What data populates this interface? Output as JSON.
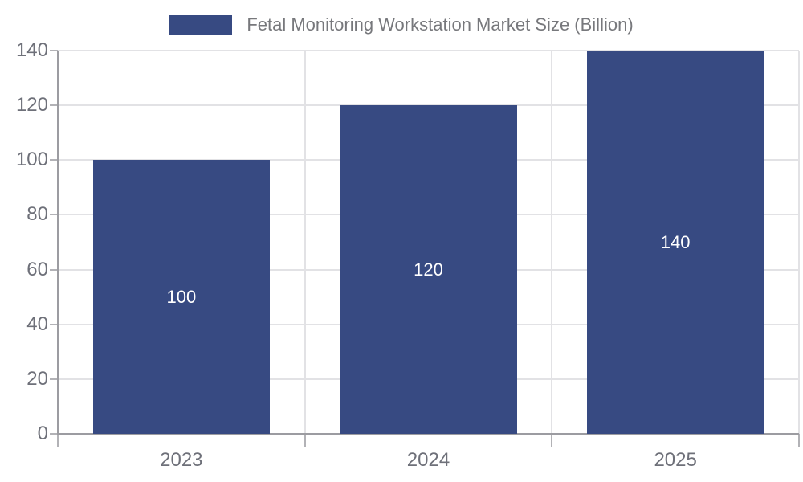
{
  "chart_data": {
    "type": "bar",
    "title": "Fetal Monitoring Workstation Market Size (Billion)",
    "categories": [
      "2023",
      "2024",
      "2025"
    ],
    "series": [
      {
        "name": "Fetal Monitoring Workstation Market Size (Billion)",
        "values": [
          100,
          120,
          140
        ]
      }
    ],
    "bar_value_labels": [
      "100",
      "120",
      "140"
    ],
    "ylabel": "",
    "xlabel": "",
    "ylim": [
      0,
      140
    ],
    "ytick_step": 20,
    "yticks": [
      0,
      20,
      40,
      60,
      80,
      100,
      120,
      140
    ],
    "grid": true,
    "legend_position": "top-center",
    "bar_labels_shown": true
  },
  "colors": {
    "bar": "#374a82",
    "grid": "#e2e2e5",
    "axis": "#9c9ca1",
    "tick": "#b2b2b6",
    "axis_label": "#6e7079",
    "legend_text": "#77787c",
    "bar_label": "#ffffff",
    "background": "#ffffff"
  }
}
